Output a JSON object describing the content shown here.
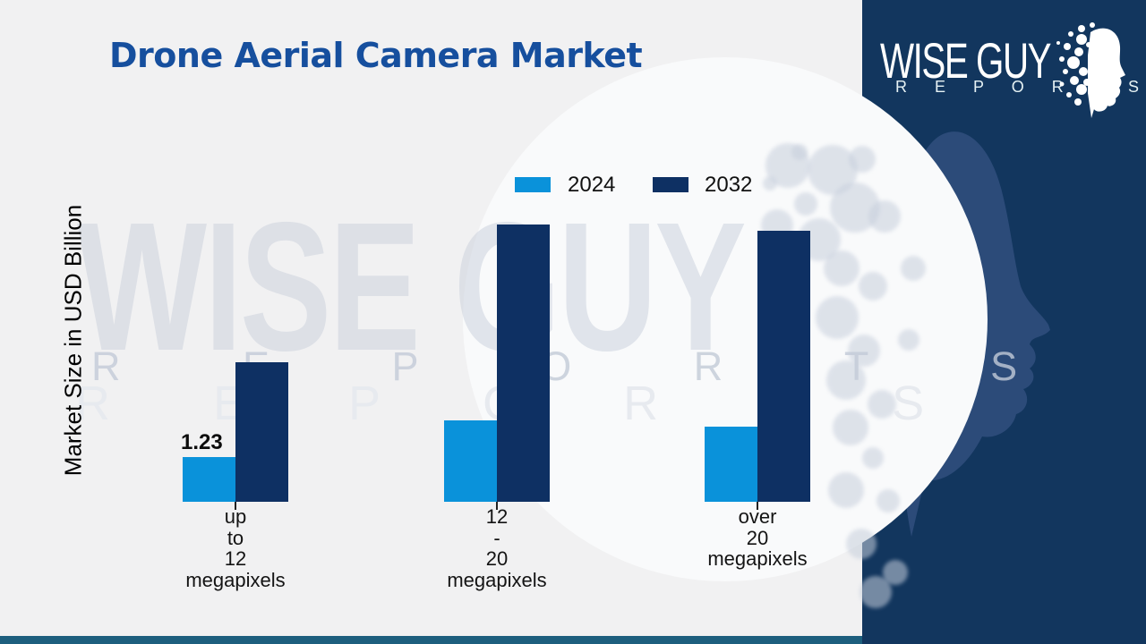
{
  "header": {
    "title": "Drone Aerial Camera Market"
  },
  "logo": {
    "brand": "WISE GUY",
    "reports": "R E P O R T S"
  },
  "watermark": {
    "brand": "WISE GUY",
    "reports": "R E P O R T S"
  },
  "colors": {
    "title_blue": "#164f9e",
    "series_2024_blue": "#0a92da",
    "series_2032_navy": "#0e3063",
    "brand_panel_navy": "#12365e",
    "bottom_bar_teal": "#1d5f7e",
    "watermark_gray": "#cdd3de",
    "background": "#f1f1f2"
  },
  "chart_data": {
    "type": "bar",
    "title": "Drone Aerial Camera Market",
    "xlabel": "",
    "ylabel": "Market Size in USD Billion",
    "categories": [
      "up to 12 megapixels",
      "12 - 20 megapixels",
      "over 20 megapixels"
    ],
    "category_lines": [
      [
        "up",
        "to",
        "12",
        "megapixels"
      ],
      [
        "12",
        "-",
        "20",
        "megapixels"
      ],
      [
        "over",
        "20",
        "megapixels"
      ]
    ],
    "series": [
      {
        "name": "2024",
        "color": "#0a92da",
        "values": [
          1.23,
          2.24,
          2.07
        ]
      },
      {
        "name": "2032",
        "color": "#0e3063",
        "values": [
          3.84,
          7.63,
          7.45
        ]
      }
    ],
    "data_labels": [
      {
        "series": "2024",
        "category": "up to 12 megapixels",
        "text": "1.23"
      }
    ],
    "legend_position": "top",
    "grid": false,
    "axis_lines": false,
    "ylim": [
      0,
      8.5
    ],
    "value_unit": "USD Billion"
  }
}
